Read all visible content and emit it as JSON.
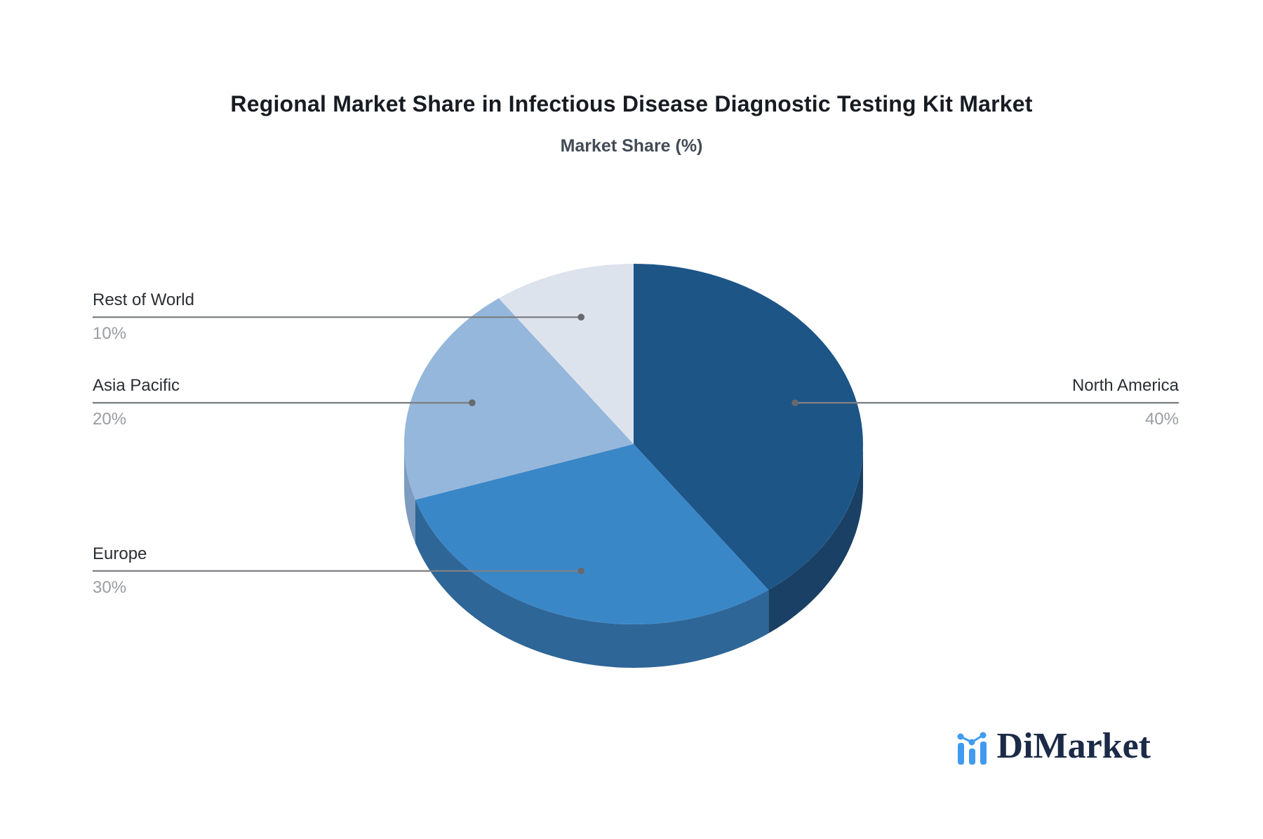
{
  "title": "Regional Market Share in Infectious Disease Diagnostic Testing Kit Market",
  "subtitle": "Market Share (%)",
  "chart_data": {
    "type": "pie",
    "style": "3d-extruded",
    "title": "Regional Market Share in Infectious Disease Diagnostic Testing Kit Market",
    "subtitle": "Market Share (%)",
    "unit": "%",
    "start_angle_deg": 0,
    "direction": "clockwise",
    "label_position": "outside-leader-lines",
    "categories": [
      "North America",
      "Europe",
      "Asia Pacific",
      "Rest of World"
    ],
    "values": [
      40,
      30,
      20,
      10
    ],
    "slices": [
      {
        "label": "North America",
        "value": 40,
        "display": "40%",
        "color": "#1d5587",
        "side_color": "#1a4065"
      },
      {
        "label": "Europe",
        "value": 30,
        "display": "30%",
        "color": "#3a87c8",
        "side_color": "#2e6698"
      },
      {
        "label": "Asia Pacific",
        "value": 20,
        "display": "20%",
        "color": "#95b7db",
        "side_color": "#7e9cc0"
      },
      {
        "label": "Rest of World",
        "value": 10,
        "display": "10%",
        "color": "#dde3ed"
      }
    ],
    "colors": {
      "background": "#ffffff",
      "title_text": "#181c22",
      "subtitle_text": "#434b56",
      "label_text": "#2b2e33",
      "value_text": "#9a9da1",
      "leader_line": "#7d8084",
      "leader_dot": "#66696d"
    }
  },
  "logo": {
    "text": "DiMarket",
    "icon": "bar-line-chart-icon",
    "icon_color": "#3f9af0",
    "text_color": "#1b2a47"
  }
}
